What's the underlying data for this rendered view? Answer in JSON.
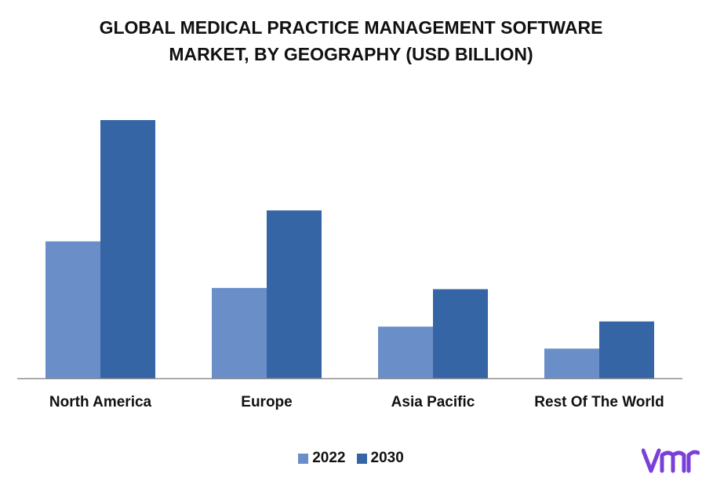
{
  "title_lines": [
    "GLOBAL MEDICAL PRACTICE MANAGEMENT SOFTWARE",
    "MARKET, BY GEOGRAPHY (USD BILLION)"
  ],
  "colors": {
    "series_2022": "#6a8ec7",
    "series_2030": "#3665a6",
    "axis": "#8c8c8c",
    "logo": "#7b3fd9"
  },
  "logo": {
    "icon": "vmr-logo"
  },
  "chart_data": {
    "type": "bar",
    "title": "GLOBAL MEDICAL PRACTICE MANAGEMENT SOFTWARE MARKET, BY GEOGRAPHY (USD BILLION)",
    "categories": [
      "North America",
      "Europe",
      "Asia Pacific",
      "Rest Of The World"
    ],
    "series": [
      {
        "name": "2022",
        "values": [
          5.3,
          3.5,
          2.0,
          1.15
        ]
      },
      {
        "name": "2030",
        "values": [
          10.0,
          6.5,
          3.45,
          2.2
        ]
      }
    ],
    "ylim": [
      0,
      10.0
    ],
    "grid": false,
    "y_axis_visible": false,
    "legend": "bottom-center"
  }
}
